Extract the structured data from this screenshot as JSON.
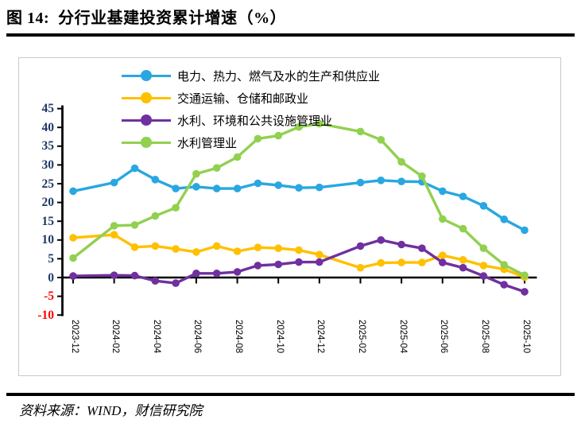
{
  "figure": {
    "title": "图 14:  分行业基建投资累计增速（%）",
    "source": "资料来源：WIND，财信研究院"
  },
  "chart_data": {
    "type": "line",
    "title": "分行业基建投资累计增速（%）",
    "categories": [
      "2023-12",
      "2024-02",
      "2024-03",
      "2024-04",
      "2024-05",
      "2024-06",
      "2024-07",
      "2024-08",
      "2024-09",
      "2024-10",
      "2024-11",
      "2024-12",
      "2025-02",
      "2025-03",
      "2025-04",
      "2025-05",
      "2025-06",
      "2025-07",
      "2025-08",
      "2025-09",
      "2025-10"
    ],
    "series": [
      {
        "name": "电力、热力、燃气及水的生产和供应业",
        "color": "#29A7E1",
        "values": [
          23.0,
          25.3,
          29.1,
          26.1,
          23.7,
          24.2,
          23.7,
          23.7,
          25.1,
          24.6,
          23.9,
          24.0,
          25.3,
          25.9,
          25.6,
          25.5,
          23.0,
          21.6,
          19.1,
          15.5,
          12.6
        ]
      },
      {
        "name": "交通运输、仓储和邮政业",
        "color": "#FFC000",
        "values": [
          10.6,
          11.4,
          8.1,
          8.4,
          7.6,
          6.8,
          8.4,
          7.0,
          8.0,
          7.8,
          7.3,
          6.1,
          2.6,
          3.9,
          4.0,
          4.0,
          5.9,
          4.7,
          3.2,
          2.2,
          0.1
        ]
      },
      {
        "name": "水利、环境和公共设施管理业",
        "color": "#7030A0",
        "values": [
          0.4,
          0.6,
          0.5,
          -0.9,
          -1.5,
          1.1,
          1.1,
          1.5,
          3.2,
          3.5,
          4.1,
          4.1,
          8.4,
          10.0,
          8.8,
          7.8,
          4.0,
          2.6,
          0.4,
          -1.9,
          -3.8
        ]
      },
      {
        "name": "水利管理业",
        "color": "#92D050",
        "values": [
          5.2,
          13.8,
          14.0,
          16.4,
          18.6,
          27.6,
          29.2,
          32.1,
          37.0,
          37.8,
          40.1,
          41.0,
          38.9,
          36.7,
          30.8,
          27.0,
          15.6,
          13.0,
          7.8,
          3.4,
          0.6
        ]
      }
    ],
    "ylim": [
      -10,
      45
    ],
    "yticks": [
      45,
      40,
      35,
      30,
      25,
      20,
      15,
      10,
      5,
      0,
      -5,
      -10
    ],
    "xtick_labels": [
      "2023-12",
      "2024-02",
      "2024-04",
      "2024-06",
      "2024-08",
      "2024-10",
      "2024-12",
      "2025-02",
      "2025-04",
      "2025-06",
      "2025-08",
      "2025-10"
    ],
    "legend_position": "top-left-inside",
    "grid": false,
    "axis_color": "#000000",
    "ytick_label_color": "#1F3864",
    "ytick_label_negative_color": "#FF0000",
    "xtick_label_color": "#000000"
  }
}
